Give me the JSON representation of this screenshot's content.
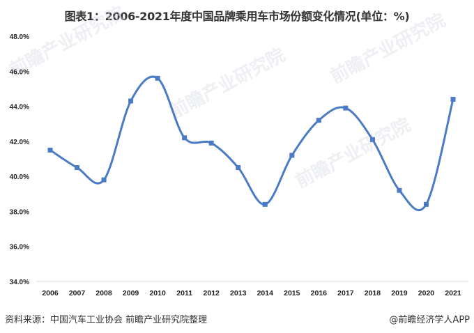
{
  "title": "图表1：2006-2021年度中国品牌乘用车市场份额变化情况(单位：%)",
  "footer": {
    "source": "资料来源：中国汽车工业协会 前瞻产业研究院整理",
    "credit": "@前瞻经济学人APP"
  },
  "watermark": "前瞻产业研究院",
  "colors": {
    "line": "#4A7BC4",
    "marker": "#4A7BC4",
    "axis": "#D9D9D9"
  },
  "chart_data": {
    "type": "line",
    "title": "图表1：2006-2021年度中国品牌乘用车市场份额变化情况(单位：%)",
    "xlabel": "",
    "ylabel": "",
    "categories": [
      "2006",
      "2007",
      "2008",
      "2009",
      "2010",
      "2011",
      "2012",
      "2013",
      "2014",
      "2015",
      "2016",
      "2017",
      "2018",
      "2019",
      "2020",
      "2021"
    ],
    "series": [
      {
        "name": "中国品牌乘用车市场份额",
        "values": [
          41.5,
          40.5,
          39.8,
          44.3,
          45.6,
          42.2,
          41.9,
          40.5,
          38.4,
          41.2,
          43.2,
          43.9,
          42.1,
          39.2,
          38.4,
          44.4
        ]
      }
    ],
    "ylim": [
      34,
      48
    ],
    "yticks": [
      "34.0%",
      "36.0%",
      "38.0%",
      "40.0%",
      "42.0%",
      "44.0%",
      "46.0%",
      "48.0%"
    ],
    "grid": false,
    "smooth": true,
    "markers": "square",
    "legend": "none"
  }
}
